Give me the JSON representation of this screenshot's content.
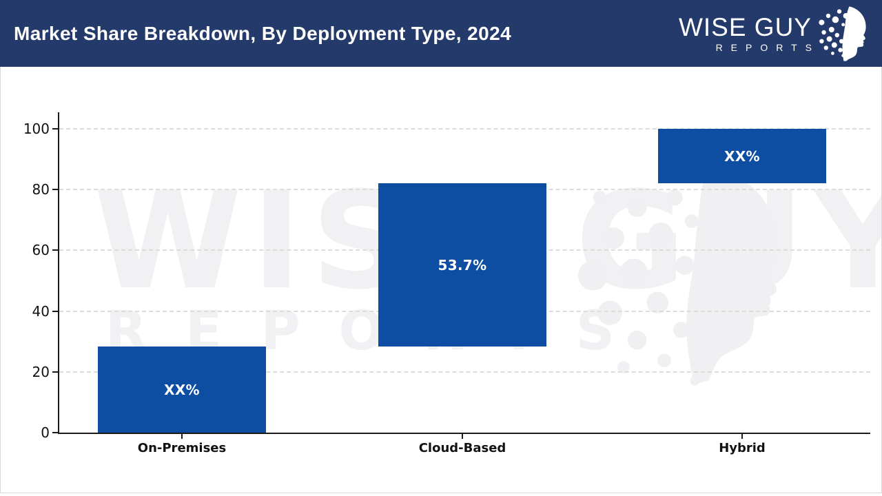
{
  "header": {
    "title": "Market Share Breakdown, By Deployment Type, 2024",
    "logo": {
      "wordmark": "WISE GUY",
      "subtext": "REPORTS"
    }
  },
  "watermark": {
    "line1": "WISE GUY",
    "line2": "REPORTS"
  },
  "chart_data": {
    "type": "bar",
    "subtype": "waterfall-style market share breakdown",
    "title": "Market Share Breakdown, By Deployment Type, 2024",
    "categories": [
      "On-Premises",
      "Cloud-Based",
      "Hybrid"
    ],
    "segments": [
      {
        "category": "On-Premises",
        "start": 0,
        "end": 28.3,
        "label": "XX%"
      },
      {
        "category": "Cloud-Based",
        "start": 28.3,
        "end": 82.0,
        "label": "53.7%"
      },
      {
        "category": "Hybrid",
        "start": 82.0,
        "end": 100,
        "label": "XX%"
      }
    ],
    "xlabel": "",
    "ylabel": "",
    "y_ticks": [
      0,
      20,
      40,
      60,
      80,
      100
    ],
    "ylim": [
      0,
      105
    ],
    "grid": "horizontal-dashed",
    "legend": "none",
    "bar_color": "#0d4da2",
    "bar_label_color": "#ffffff"
  },
  "colors": {
    "header_bg": "#243a6b",
    "bar": "#0d4da2",
    "gridline": "#dcdcdc",
    "axis": "#1a1a1a",
    "watermark": "#f1f1f4",
    "card_border": "#d9d9d9",
    "text": "#111111"
  }
}
